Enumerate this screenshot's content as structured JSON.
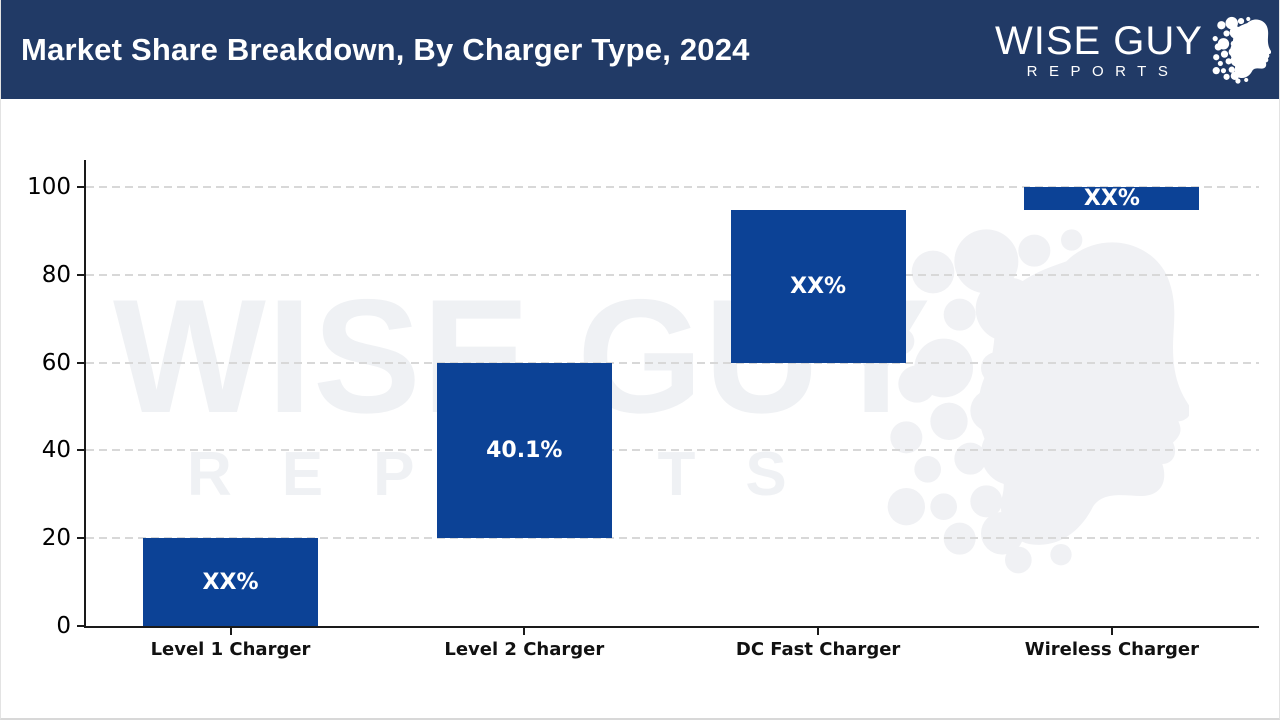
{
  "header": {
    "title": "Market Share Breakdown, By Charger Type, 2024",
    "logo": {
      "line1": "WISE GUY",
      "line2": "REPORTS"
    }
  },
  "watermark": {
    "line1": "WISE GUY",
    "line2": "REPORTS"
  },
  "colors": {
    "header_bg": "#213A66",
    "bar": "#0C4296",
    "gridline": "#D8D8D8",
    "axis": "#1A1A1A",
    "bar_label": "#FFFFFF",
    "watermark": "#EFF1F4"
  },
  "chart_data": {
    "type": "bar",
    "subtype": "waterfall",
    "title": "Market Share Breakdown, By Charger Type, 2024",
    "xlabel": "",
    "ylabel": "",
    "categories": [
      "Level 1 Charger",
      "Level 2 Charger",
      "DC Fast Charger",
      "Wireless Charger"
    ],
    "segments": [
      {
        "category": "Level 1 Charger",
        "start": 0,
        "end": 20,
        "label": "XX%"
      },
      {
        "category": "Level 2 Charger",
        "start": 20,
        "end": 60,
        "label": "40.1%"
      },
      {
        "category": "DC Fast Charger",
        "start": 60,
        "end": 94.7,
        "label": "XX%"
      },
      {
        "category": "Wireless Charger",
        "start": 94.7,
        "end": 100,
        "label": "XX%"
      }
    ],
    "yticks": [
      0,
      20,
      40,
      60,
      80,
      100
    ],
    "ylim": [
      0,
      105
    ],
    "grid": "horizontal-dashed",
    "legend": "none"
  }
}
